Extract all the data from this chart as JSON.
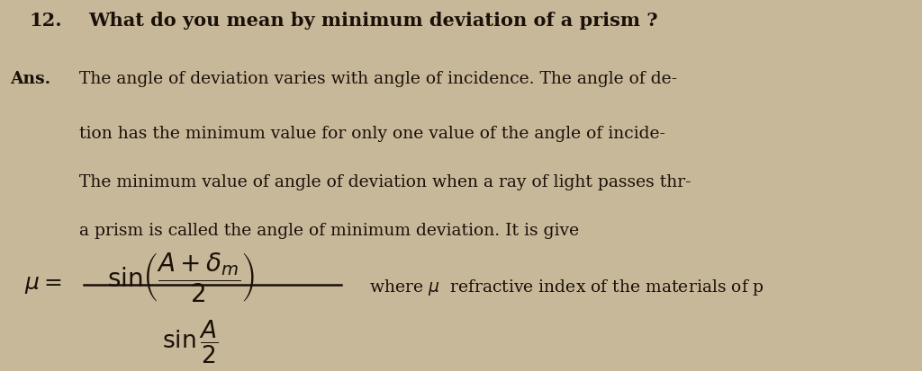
{
  "background_color": "#c8b89a",
  "title_number": "12.",
  "title_text": "What do you mean by minimum deviation of a prism ?",
  "ans_label": "Ans.",
  "line1": "The angle of deviation varies with angle of incidence. The angle of de-",
  "line2": "tion has the minimum value for only one value of the angle of incide-",
  "line3": "The minimum value of angle of deviation when a ray of light passes thr-",
  "line4": "a prism is called the angle of minimum deviation. It is give",
  "where_text": "where   refractive index of the materials of p",
  "title_fontsize": 15,
  "body_fontsize": 13.5,
  "formula_fontsize": 16,
  "text_color": "#1a1008"
}
